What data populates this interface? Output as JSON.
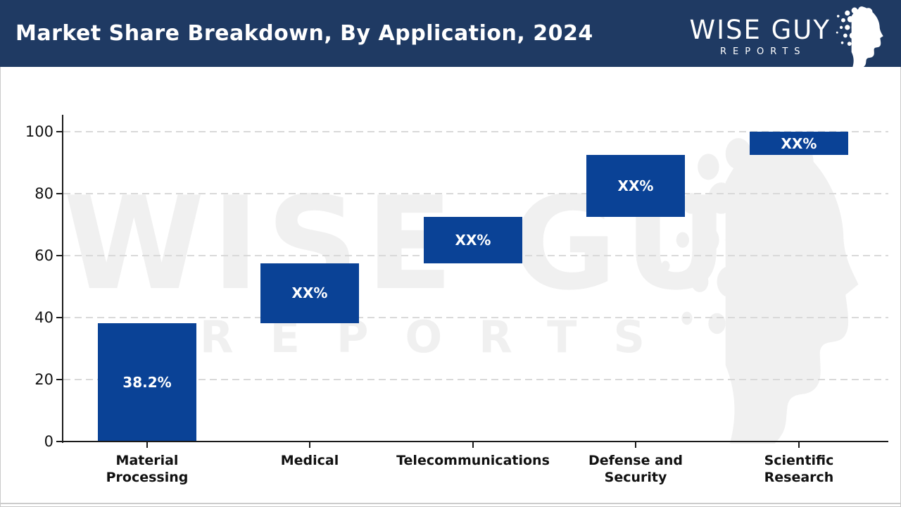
{
  "header": {
    "title": "Market Share Breakdown, By Application, 2024",
    "bg_color": "#1f3a63",
    "logo": {
      "brand_line1": "WISE GUY",
      "brand_line2": "REPORTS"
    }
  },
  "watermark": {
    "line1": "WISE GUY",
    "line2": "REPORTS"
  },
  "chart_data": {
    "type": "bar",
    "variant": "waterfall",
    "title": "Market Share Breakdown, By Application, 2024",
    "categories": [
      "Material Processing",
      "Medical",
      "Telecommunications",
      "Defense and Security",
      "Scientific Research"
    ],
    "category_lines": [
      [
        "Material",
        "Processing"
      ],
      [
        "Medical"
      ],
      [
        "Telecommunications"
      ],
      [
        "Defense and",
        "Security"
      ],
      [
        "Scientific",
        "Research"
      ]
    ],
    "segments": [
      {
        "category": "Material Processing",
        "start": 0,
        "end": 38.2,
        "label": "38.2%"
      },
      {
        "category": "Medical",
        "start": 38.2,
        "end": 57.5,
        "label": "XX%"
      },
      {
        "category": "Telecommunications",
        "start": 57.5,
        "end": 72.5,
        "label": "XX%"
      },
      {
        "category": "Defense and Security",
        "start": 72.5,
        "end": 92.5,
        "label": "XX%"
      },
      {
        "category": "Scientific Research",
        "start": 92.5,
        "end": 100,
        "label": "XX%"
      }
    ],
    "ylim": [
      0,
      100
    ],
    "yticks": [
      0,
      20,
      40,
      60,
      80,
      100
    ],
    "grid": "horizontal-dashed",
    "legend": "none",
    "bar_color": "#0a4296",
    "bar_label_color": "#ffffff",
    "axis_color": "#1a1a1a",
    "gridline_color": "#d9d9d9"
  }
}
